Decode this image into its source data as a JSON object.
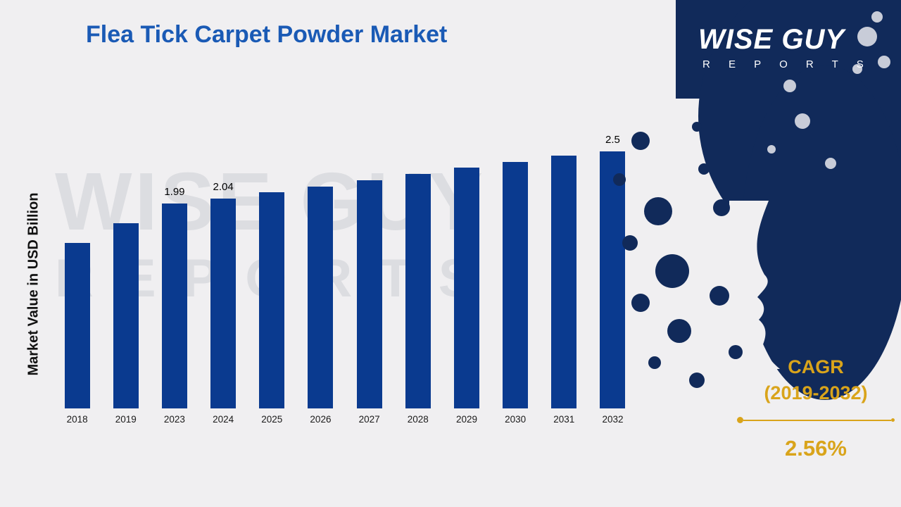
{
  "title": "Flea Tick Carpet Powder Market",
  "ylabel": "Market Value in USD Billion",
  "chart_data": {
    "type": "bar",
    "title": "Flea Tick Carpet Powder Market",
    "xlabel": "",
    "ylabel": "Market Value in USD Billion",
    "categories": [
      "2018",
      "2019",
      "2023",
      "2024",
      "2025",
      "2026",
      "2027",
      "2028",
      "2029",
      "2030",
      "2031",
      "2032"
    ],
    "values": [
      1.61,
      1.8,
      1.99,
      2.04,
      2.1,
      2.16,
      2.22,
      2.28,
      2.34,
      2.4,
      2.46,
      2.5
    ],
    "bar_labels": [
      "",
      "",
      "1.99",
      "2.04",
      "",
      "",
      "",
      "",
      "",
      "",
      "",
      "2.5"
    ],
    "ylim": [
      0,
      2.6
    ],
    "grid": false,
    "legend": false,
    "bar_color": "#0a3a8f"
  },
  "watermark": {
    "line1": "WISE GUY",
    "line2": "REPORTS"
  },
  "logo": {
    "line1": "WISE GUY",
    "line2": "R E P O R T S"
  },
  "cagr": {
    "label": "CAGR",
    "range": "(2019-2032)",
    "value": "2.56%"
  },
  "colors": {
    "background": "#f0eff1",
    "title": "#1a5ab5",
    "bar": "#0a3a8f",
    "panel": "#112a5a",
    "gold": "#d9a41b",
    "watermark": "#dcdde1"
  }
}
